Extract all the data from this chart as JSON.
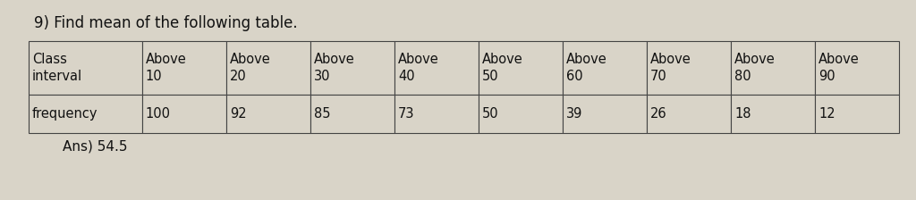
{
  "title": "9) Find mean of the following table.",
  "answer": "Ans) 54.5",
  "col_headers": [
    "Class\ninterval",
    "Above\n10",
    "Above\n20",
    "Above\n30",
    "Above\n40",
    "Above\n50",
    "Above\n60",
    "Above\n70",
    "Above\n80",
    "Above\n90"
  ],
  "row_frequency": [
    "frequency",
    "100",
    "92",
    "85",
    "73",
    "50",
    "39",
    "26",
    "18",
    "12"
  ],
  "background_color": "#d9d4c8",
  "table_bg": "#d9d4c8",
  "border_color": "#444444",
  "text_color": "#111111",
  "title_fontsize": 12,
  "table_fontsize": 10.5,
  "answer_fontsize": 11
}
